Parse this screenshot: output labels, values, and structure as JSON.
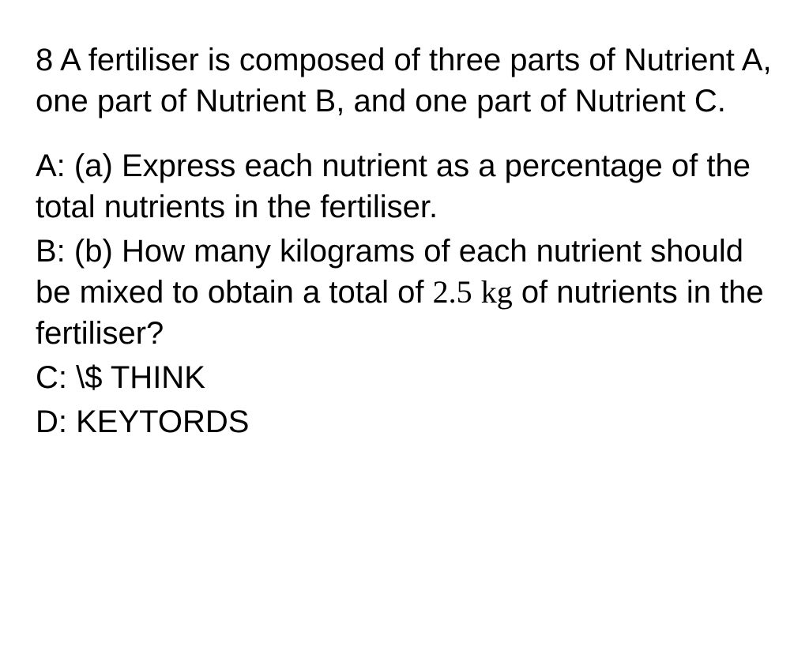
{
  "question": {
    "number": "8",
    "text": "A fertiliser is composed of three parts of Nutrient A, one part of Nutrient B, and one part of Nutrient C."
  },
  "options": {
    "a": {
      "label": "A:",
      "sublabel": "(a)",
      "text": "Express each nutrient as a percentage of the total nutrients in the fertiliser."
    },
    "b": {
      "label": "B:",
      "sublabel": "(b)",
      "text_before": "How many kilograms of each nutrient should be mixed to obtain a total of",
      "value": "2.5",
      "unit": "kg",
      "text_after": "of nutrients in the fertiliser?"
    },
    "c": {
      "label": "C:",
      "text": "\\$ THINK"
    },
    "d": {
      "label": "D:",
      "text": "KEYTORDS"
    }
  },
  "styling": {
    "background_color": "#ffffff",
    "text_color": "#000000",
    "font_size_main": 40,
    "font_family_body": "Arial, Helvetica, sans-serif",
    "font_family_math": "Times New Roman, Times, serif",
    "line_height": 1.3
  }
}
